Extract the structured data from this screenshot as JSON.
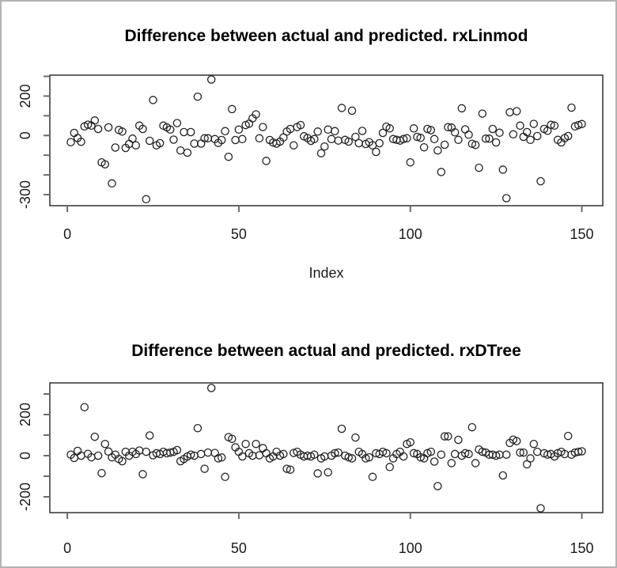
{
  "window": {
    "background": "#ffffff",
    "frame_border_color": "#b3b3b3"
  },
  "colors": {
    "plot_border": "#222222",
    "tick_mark": "#6b6b6b",
    "marker_stroke": "#222222",
    "text": "#000000"
  },
  "charts": [
    {
      "id": "rxLinmod",
      "chart_data": {
        "type": "scatter",
        "title": "Difference between actual and predicted. rxLinmod",
        "xlabel": "Index",
        "ylabel": "",
        "marker": "open-circle",
        "grid": false,
        "x_rule": "index 1..150",
        "xlim": [
          -5.1,
          156.1
        ],
        "ylim": [
          -356,
          306
        ],
        "x_ticks": {
          "values": [
            0,
            50,
            100,
            150
          ],
          "labels": [
            "0",
            "50",
            "100",
            "150"
          ]
        },
        "y_ticks": {
          "values": [
            300,
            200,
            100,
            0,
            -100,
            -200,
            -300
          ],
          "labels": [
            "",
            "200",
            "",
            "0",
            "",
            "",
            "-300"
          ]
        },
        "values": [
          -34,
          13,
          -13,
          -32,
          46,
          55,
          50,
          76,
          33,
          -136,
          -146,
          41,
          -243,
          -61,
          28,
          20,
          -63,
          -43,
          -16,
          -50,
          50,
          33,
          -323,
          -27,
          180,
          -50,
          -39,
          50,
          41,
          30,
          -21,
          63,
          -76,
          17,
          -87,
          17,
          -41,
          197,
          -41,
          -14,
          -14,
          284,
          -18,
          -38,
          -23,
          22,
          -108,
          134,
          -23,
          30,
          -18,
          53,
          60,
          87,
          107,
          -14,
          43,
          -129,
          -23,
          -36,
          -41,
          -31,
          -10,
          20,
          33,
          -50,
          43,
          53,
          -4,
          -13,
          -27,
          -18,
          20,
          -90,
          -56,
          30,
          -18,
          22,
          -26,
          140,
          -22,
          -31,
          126,
          -7,
          -39,
          23,
          -43,
          -34,
          -50,
          -83,
          -39,
          13,
          45,
          36,
          -18,
          -22,
          -26,
          -18,
          -14,
          -136,
          36,
          -7,
          -12,
          -60,
          33,
          27,
          -18,
          -76,
          -185,
          -47,
          42,
          40,
          16,
          -22,
          138,
          31,
          4,
          -42,
          -48,
          -164,
          111,
          -16,
          -16,
          33,
          -35,
          14,
          -173,
          -318,
          118,
          6,
          123,
          50,
          -7,
          17,
          -22,
          59,
          -3,
          -232,
          33,
          24,
          54,
          50,
          -22,
          -35,
          -13,
          -3,
          141,
          46,
          53,
          58
        ]
      }
    },
    {
      "id": "rxDTree",
      "chart_data": {
        "type": "scatter",
        "title": "Difference between actual and predicted. rxDTree",
        "xlabel": "",
        "ylabel": "",
        "marker": "open-circle",
        "grid": false,
        "x_rule": "index 1..150",
        "xlim": [
          -5.1,
          156.1
        ],
        "ylim": [
          -277,
          354
        ],
        "x_ticks": {
          "values": [
            0,
            50,
            100,
            150
          ],
          "labels": [
            "0",
            "50",
            "100",
            "150"
          ]
        },
        "y_ticks": {
          "values": [
            300,
            200,
            100,
            0,
            -100,
            -200
          ],
          "labels": [
            "",
            "200",
            "",
            "0",
            "",
            "-200"
          ]
        },
        "values": [
          5,
          -11,
          23,
          0,
          236,
          9,
          -8,
          92,
          0,
          -85,
          57,
          20,
          -8,
          5,
          -16,
          -27,
          19,
          0,
          19,
          8,
          25,
          -90,
          19,
          98,
          2,
          12,
          8,
          19,
          12,
          15,
          19,
          27,
          -27,
          -16,
          -4,
          5,
          0,
          134,
          8,
          -64,
          15,
          329,
          13,
          -13,
          -9,
          -103,
          90,
          82,
          41,
          19,
          -4,
          57,
          12,
          0,
          57,
          2,
          37,
          12,
          -13,
          -4,
          19,
          0,
          8,
          -64,
          -68,
          13,
          19,
          5,
          -4,
          0,
          -4,
          5,
          -86,
          -13,
          -4,
          -81,
          0,
          12,
          15,
          131,
          0,
          -8,
          -13,
          88,
          19,
          8,
          -13,
          -8,
          -103,
          12,
          8,
          19,
          12,
          -55,
          -13,
          8,
          19,
          -4,
          57,
          65,
          12,
          8,
          -8,
          -13,
          12,
          19,
          -29,
          -148,
          5,
          94,
          94,
          -36,
          8,
          77,
          0,
          12,
          8,
          138,
          -36,
          30,
          19,
          15,
          5,
          5,
          0,
          5,
          -96,
          5,
          62,
          78,
          71,
          15,
          15,
          -42,
          -13,
          57,
          19,
          -256,
          12,
          5,
          8,
          -4,
          12,
          19,
          8,
          96,
          5,
          15,
          19,
          21
        ]
      }
    }
  ]
}
